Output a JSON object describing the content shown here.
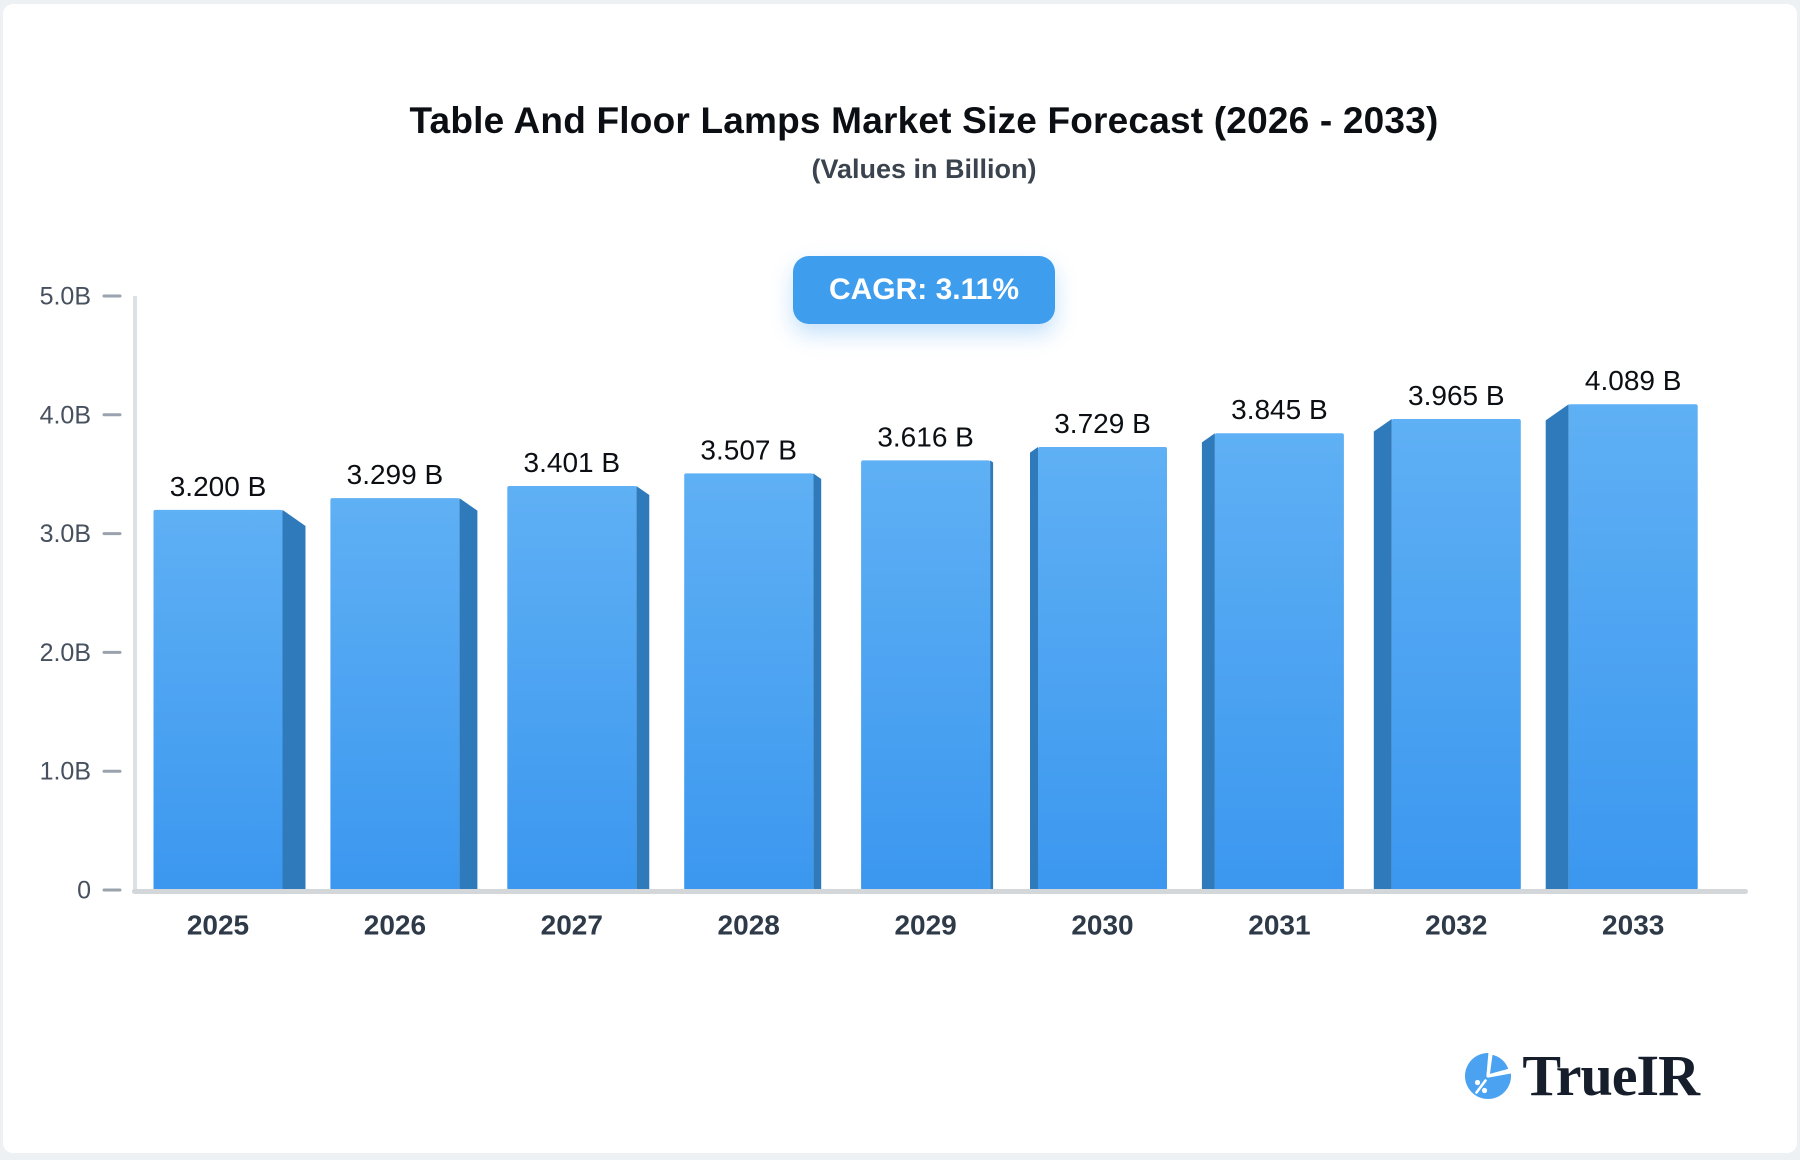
{
  "page": {
    "title": "Table And Floor Lamps Market Size Forecast (2026 - 2033)",
    "subtitle": "(Values in Billion)",
    "badge": "CAGR: 3.11%",
    "logo_text": "TrueIR"
  },
  "chart_data": {
    "type": "bar",
    "title": "Table And Floor Lamps Market Size Forecast (2026 - 2033)",
    "subtitle": "(Values in Billion)",
    "annotation": "CAGR: 3.11%",
    "categories": [
      "2025",
      "2026",
      "2027",
      "2028",
      "2029",
      "2030",
      "2031",
      "2032",
      "2033"
    ],
    "values": [
      3.2,
      3.299,
      3.401,
      3.507,
      3.616,
      3.729,
      3.845,
      3.965,
      4.089
    ],
    "bar_labels": [
      "3.200 B",
      "3.299 B",
      "3.401 B",
      "3.507 B",
      "3.616 B",
      "3.729 B",
      "3.845 B",
      "3.965 B",
      "4.089 B"
    ],
    "unit": "Billion",
    "xlabel": "",
    "ylabel": "",
    "ylim": [
      0,
      5
    ],
    "yticks": [
      {
        "value": 5,
        "label": "5.0B"
      },
      {
        "value": 4,
        "label": "4.0B"
      },
      {
        "value": 3,
        "label": "3.0B"
      },
      {
        "value": 2,
        "label": "2.0B"
      },
      {
        "value": 1,
        "label": "1.0B"
      },
      {
        "value": 0,
        "label": "0"
      }
    ],
    "grid": false,
    "legend": "none",
    "style_3d": true,
    "colors": {
      "bar_front_top": "#5fb0f4",
      "bar_front_bottom": "#3b97ef",
      "bar_side": "#2f7abb",
      "badge_bg": "#3f9dee",
      "axis_line": "#dde1e5",
      "baseline": "#d3d7da",
      "tick": "#9aa3ad",
      "y_label": "#46505e",
      "x_label": "#2f3a49",
      "value_label": "#0b0e13",
      "logo_blue": "#4aa2f1"
    }
  }
}
